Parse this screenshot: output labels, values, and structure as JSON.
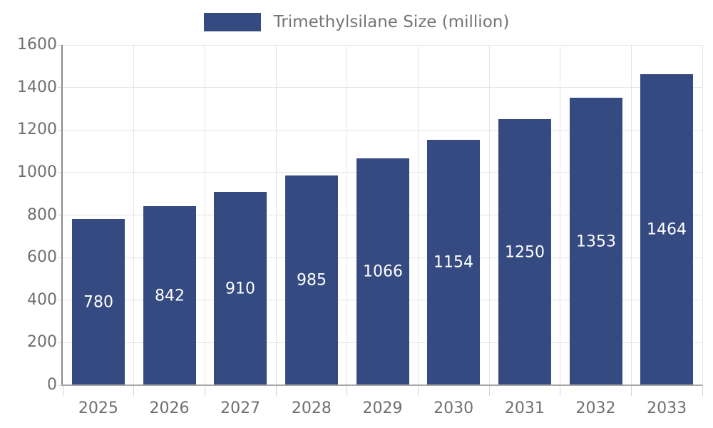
{
  "chart_data": {
    "type": "bar",
    "legend": "Trimethylsilane Size (million)",
    "categories": [
      "2025",
      "2026",
      "2027",
      "2028",
      "2029",
      "2030",
      "2031",
      "2032",
      "2033"
    ],
    "values": [
      780,
      842,
      910,
      985,
      1066,
      1154,
      1250,
      1353,
      1464
    ],
    "yticks": [
      0,
      200,
      400,
      600,
      800,
      1000,
      1200,
      1400,
      1600
    ],
    "ylim": [
      0,
      1600
    ],
    "xlabel": "",
    "ylabel": "",
    "grid": true,
    "legend_position": "top-center",
    "bar_color": "#364A82",
    "value_label_color": "#ffffff",
    "tick_label_color": "#6f6f6f",
    "legend_text_color": "#757575"
  }
}
